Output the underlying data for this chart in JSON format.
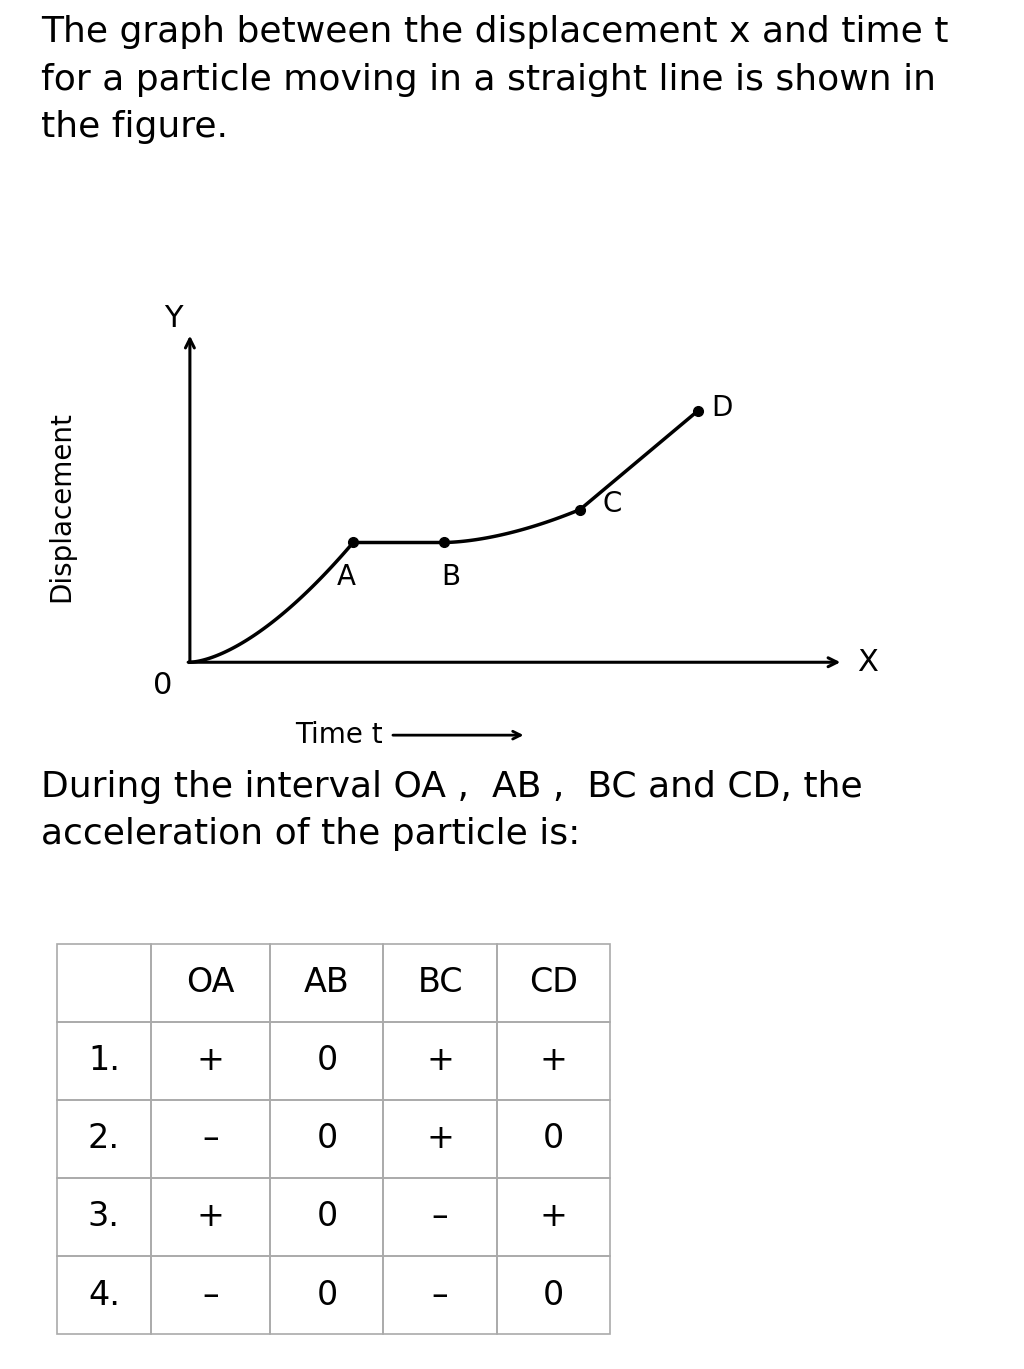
{
  "title_text": "The graph between the displacement x and time t\nfor a particle moving in a straight line is shown in\nthe figure.",
  "subtitle_text": "During the interval OA ,  AB ,  BC and CD, the\nacceleration of the particle is:",
  "graph_ylabel": "Displacement",
  "graph_xlabel": "Time t",
  "graph_x_axis_label": "X",
  "graph_y_axis_label": "Y",
  "background_color": "#ffffff",
  "text_color": "#000000",
  "line_color": "#000000",
  "point_color": "#000000",
  "table_header": [
    "",
    "OA",
    "AB",
    "BC",
    "CD"
  ],
  "table_rows": [
    [
      "1.",
      "+",
      "0",
      "+",
      "+"
    ],
    [
      "2.",
      "–",
      "0",
      "+",
      "0"
    ],
    [
      "3.",
      "+",
      "0",
      "–",
      "+"
    ],
    [
      "4.",
      "–",
      "0",
      "–",
      "0"
    ]
  ],
  "title_fontsize": 26,
  "subtitle_fontsize": 26,
  "label_fontsize": 20,
  "table_fontsize": 24,
  "axis_label_fontsize": 22,
  "point_label_fontsize": 20
}
